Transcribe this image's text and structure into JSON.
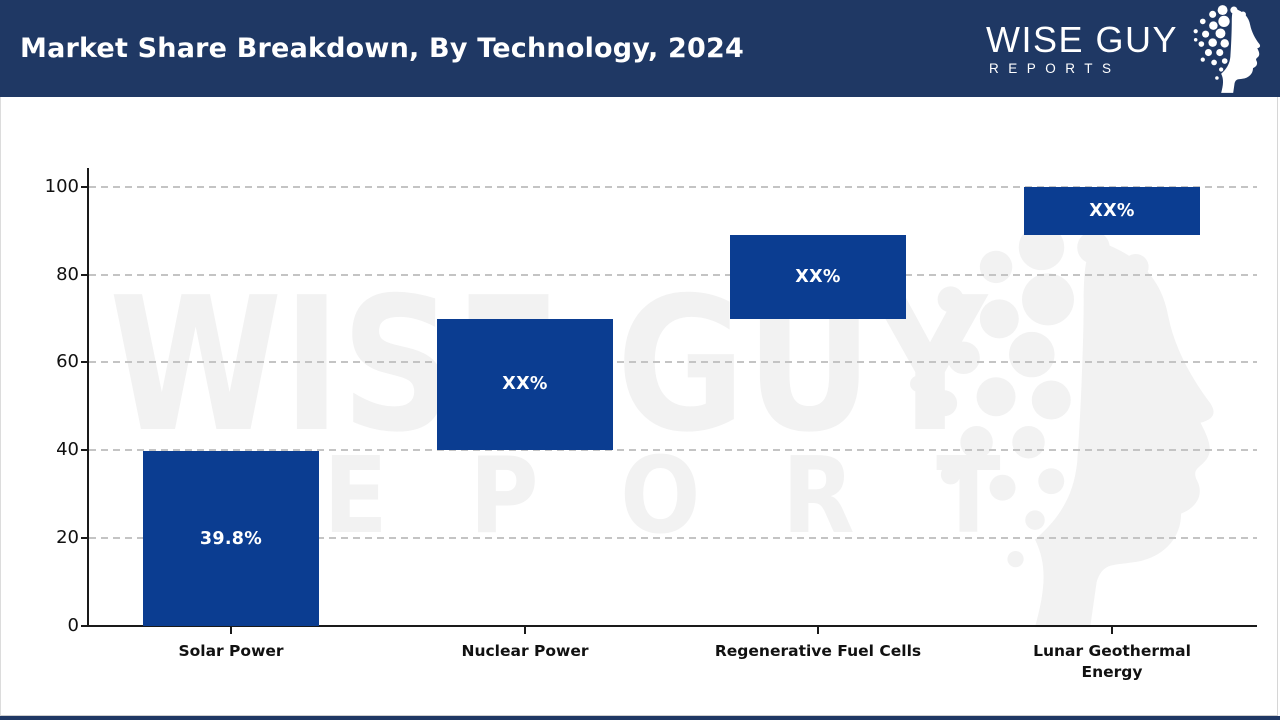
{
  "header": {
    "title": "Market Share Breakdown, By Technology, 2024",
    "bg_color": "#1f3864",
    "logo": {
      "line1": "WISE GUY",
      "line2": "REPORTS"
    }
  },
  "watermark": {
    "line1": "WISE GUY",
    "line2": "R E P O R T S"
  },
  "chart_data": {
    "type": "bar",
    "subtype": "waterfall",
    "title": "Market Share Breakdown, By Technology, 2024",
    "categories": [
      "Solar Power",
      "Nuclear Power",
      "Regenerative Fuel Cells",
      "Lunar Geothermal Energy"
    ],
    "series": [
      {
        "name": "Market share (%)",
        "segments": [
          {
            "category": "Solar Power",
            "start": 0,
            "end": 39.8,
            "label": "39.8%"
          },
          {
            "category": "Nuclear Power",
            "start": 40,
            "end": 70,
            "label": "XX%"
          },
          {
            "category": "Regenerative Fuel Cells",
            "start": 70,
            "end": 89,
            "label": "XX%"
          },
          {
            "category": "Lunar Geothermal Energy",
            "start": 89,
            "end": 100,
            "label": "XX%"
          }
        ]
      }
    ],
    "xlabel": "",
    "ylabel": "",
    "ylim": [
      0,
      100
    ],
    "yticks": [
      0,
      20,
      40,
      60,
      80,
      100
    ],
    "grid": "horizontal-dashed",
    "legend": "none",
    "colors": {
      "bar": "#0b3d91",
      "bar_label": "#ffffff",
      "axis": "#1a1a1a",
      "gridline": "#c4c4c4",
      "header_bg": "#1f3864",
      "watermark": "#f2f2f2"
    }
  }
}
